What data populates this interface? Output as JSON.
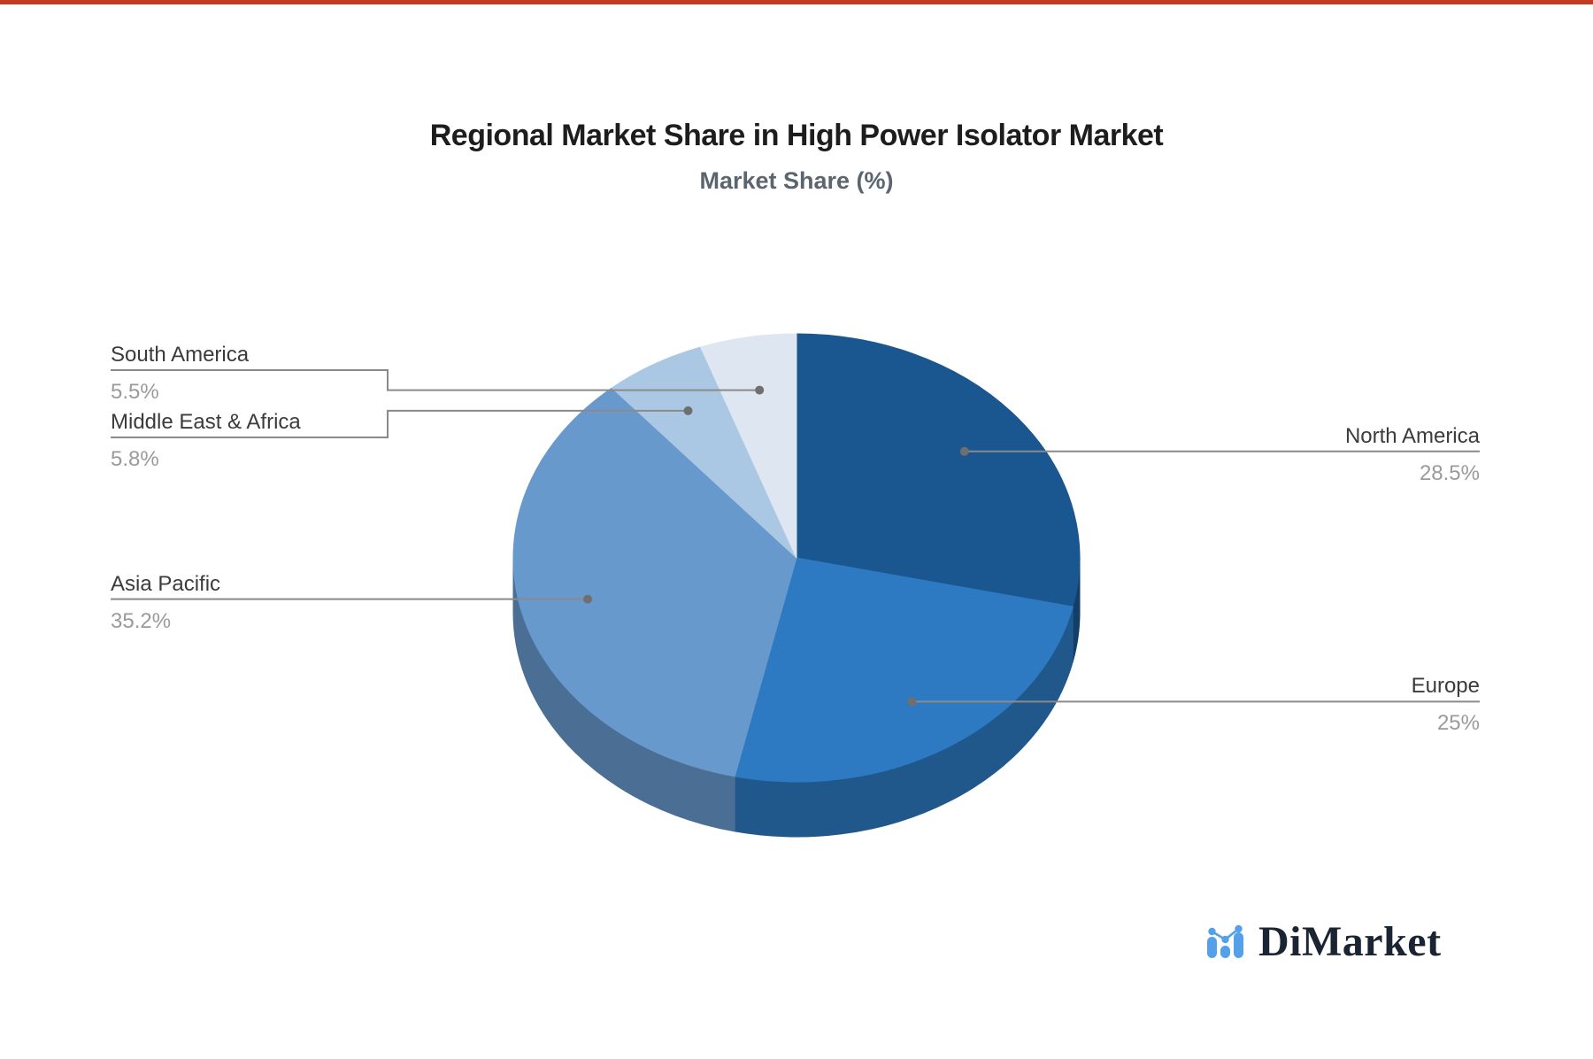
{
  "page": {
    "background": "#ffffff",
    "top_bar_color": "#c23a20"
  },
  "chart_data": {
    "type": "pie",
    "style_3d": true,
    "start_angle_deg": 0,
    "direction": "clockwise",
    "title": "Regional Market Share in High Power Isolator Market",
    "subtitle": "Market Share (%)",
    "unit": "%",
    "slices": [
      {
        "name": "North America",
        "value": 28.5,
        "display": "28.5%",
        "color": "#1a568f",
        "label_side": "right"
      },
      {
        "name": "Europe",
        "value": 25,
        "display": "25%",
        "color": "#2e7ac2",
        "label_side": "right"
      },
      {
        "name": "Asia Pacific",
        "value": 35.2,
        "display": "35.2%",
        "color": "#6899cd",
        "label_side": "left"
      },
      {
        "name": "Middle East & Africa",
        "value": 5.8,
        "display": "5.8%",
        "color": "#aac8e4",
        "label_side": "left"
      },
      {
        "name": "South America",
        "value": 5.5,
        "display": "5.5%",
        "color": "#dde6f1",
        "label_side": "left"
      }
    ],
    "legend": "none",
    "leader_line_color": "#8a8a8a",
    "leader_dot_color": "#6f6f6f",
    "label_name_color": "#3b3b3b",
    "label_value_color": "#9a9a9a"
  },
  "footer": {
    "logo_text": "DiMarket",
    "logo_icon": "bar-line-combo-chart-icon",
    "logo_icon_color": "#55a1e9",
    "logo_text_color": "#1b2432"
  }
}
